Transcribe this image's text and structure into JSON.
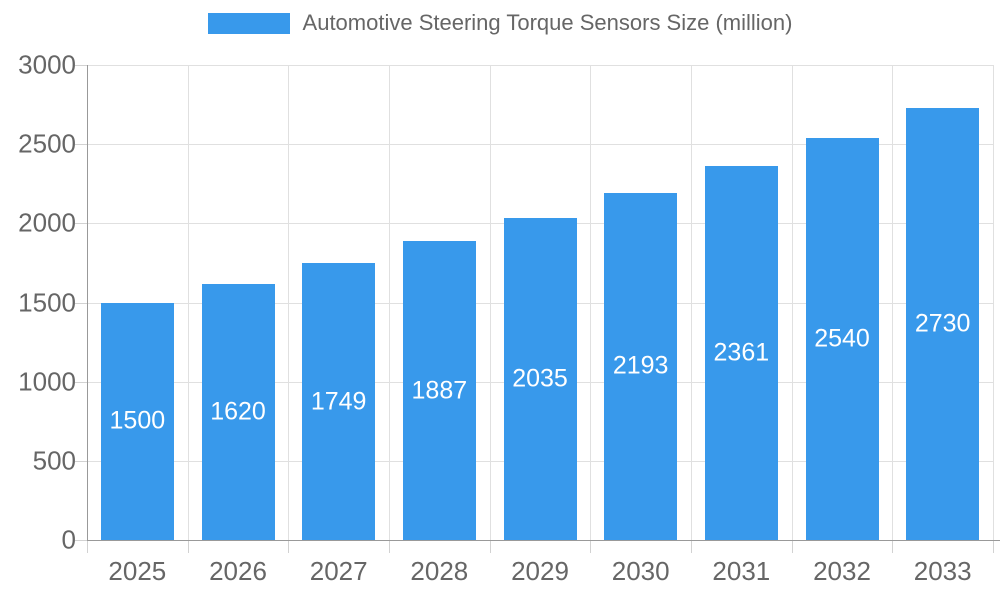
{
  "chart_data": {
    "type": "bar",
    "title": "Automotive Steering Torque Sensors Size (million)",
    "categories": [
      "2025",
      "2026",
      "2027",
      "2028",
      "2029",
      "2030",
      "2031",
      "2032",
      "2033"
    ],
    "values": [
      1500,
      1620,
      1749,
      1887,
      2035,
      2193,
      2361,
      2540,
      2730
    ],
    "xlabel": "",
    "ylabel": "",
    "ylim": [
      0,
      3000
    ],
    "yticks": [
      0,
      500,
      1000,
      1500,
      2000,
      2500,
      3000
    ],
    "grid": true,
    "legend_position": "top",
    "colors": {
      "bar": "#3899EB",
      "value_label": "#FFFFFF",
      "axis_text": "#666666",
      "gridline": "#E0E0E0",
      "tick": "#D2D2D2",
      "axis_line": "#999999",
      "background": "#FFFFFF"
    }
  }
}
